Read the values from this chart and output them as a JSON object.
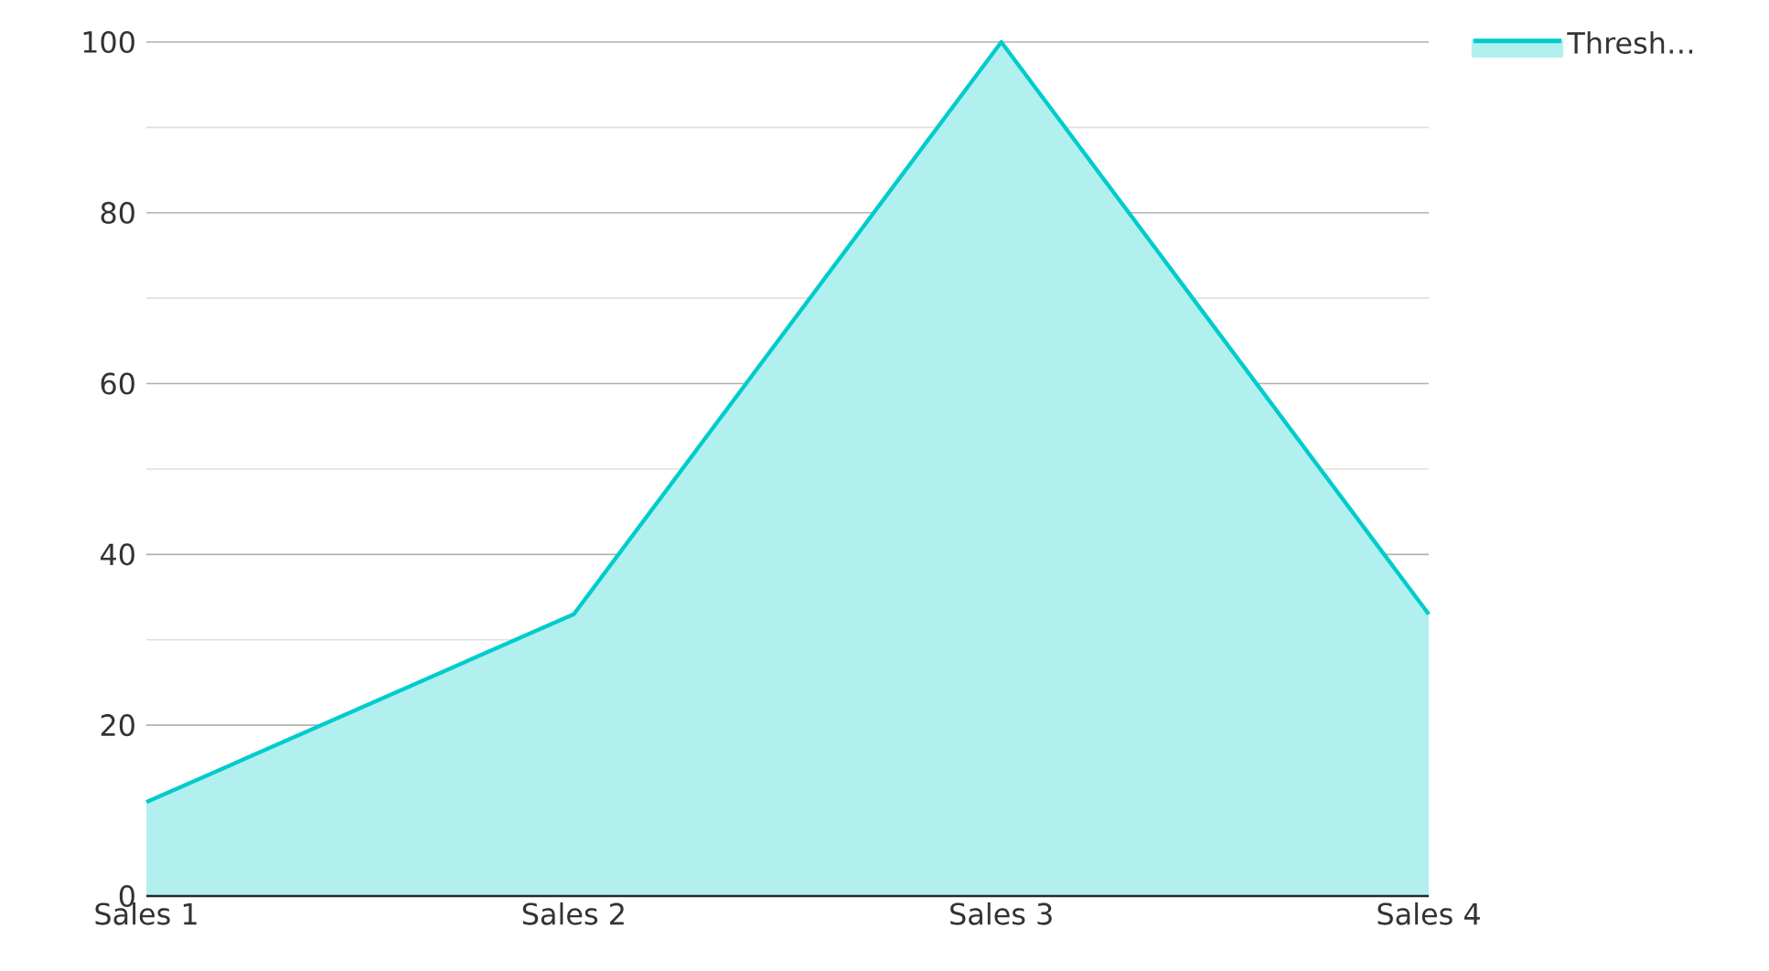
{
  "chart_data": {
    "type": "area",
    "categories": [
      "Sales 1",
      "Sales 2",
      "Sales 3",
      "Sales 4"
    ],
    "series": [
      {
        "name": "Thresh…",
        "color": "#00cccc",
        "values": [
          11,
          33,
          100,
          33
        ]
      }
    ],
    "ylim": [
      0,
      100
    ],
    "yticks": [
      0,
      20,
      40,
      60,
      80,
      100
    ],
    "grid": "y",
    "legend": "top right"
  }
}
